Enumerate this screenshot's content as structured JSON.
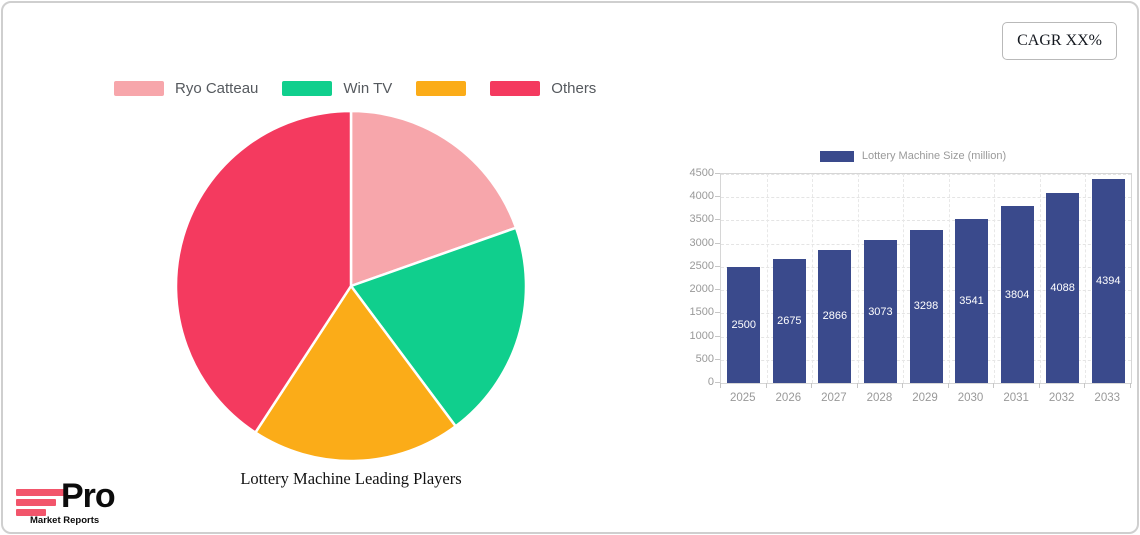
{
  "card": {
    "cagr_label": "CAGR XX%"
  },
  "logo": {
    "title": "Pro",
    "subtitle": "Market Reports",
    "accent": "#f2556b"
  },
  "pie_section": {
    "title": "Lottery Machine Leading Players",
    "legend": [
      {
        "label": "Ryo Catteau",
        "color": "#f7a6ab"
      },
      {
        "label": "Win TV",
        "color": "#10cf8d"
      },
      {
        "label": "",
        "color": "#fbac18"
      },
      {
        "label": "Others",
        "color": "#f43a5f"
      }
    ]
  },
  "bar_section": {
    "legend_label": "Lottery Machine Size (million)",
    "bar_color": "#3a4a8c"
  },
  "chart_data": [
    {
      "type": "pie",
      "title": "Lottery Machine Leading Players",
      "labels": [
        "Ryo Catteau",
        "Win TV",
        "",
        "Others"
      ],
      "values_percent": [
        19.6,
        20.2,
        19.4,
        40.8
      ],
      "colors": [
        "#f7a6ab",
        "#10cf8d",
        "#fbac18",
        "#f43a5f"
      ],
      "start_angle_deg": 0,
      "direction": "clockwise",
      "legend_position": "top",
      "slice_gap_color": "#ffffff"
    },
    {
      "type": "bar",
      "series_name": "Lottery Machine Size (million)",
      "categories": [
        "2025",
        "2026",
        "2027",
        "2028",
        "2029",
        "2030",
        "2031",
        "2032",
        "2033"
      ],
      "values": [
        2500,
        2675,
        2866,
        3073,
        3298,
        3541,
        3804,
        4088,
        4394
      ],
      "bar_color": "#3a4a8c",
      "value_label_color": "#ffffff",
      "axis_label_color": "#999999",
      "ylim": [
        0,
        4500
      ],
      "ytick_step": 500,
      "grid": true,
      "legend_position": "top"
    }
  ]
}
